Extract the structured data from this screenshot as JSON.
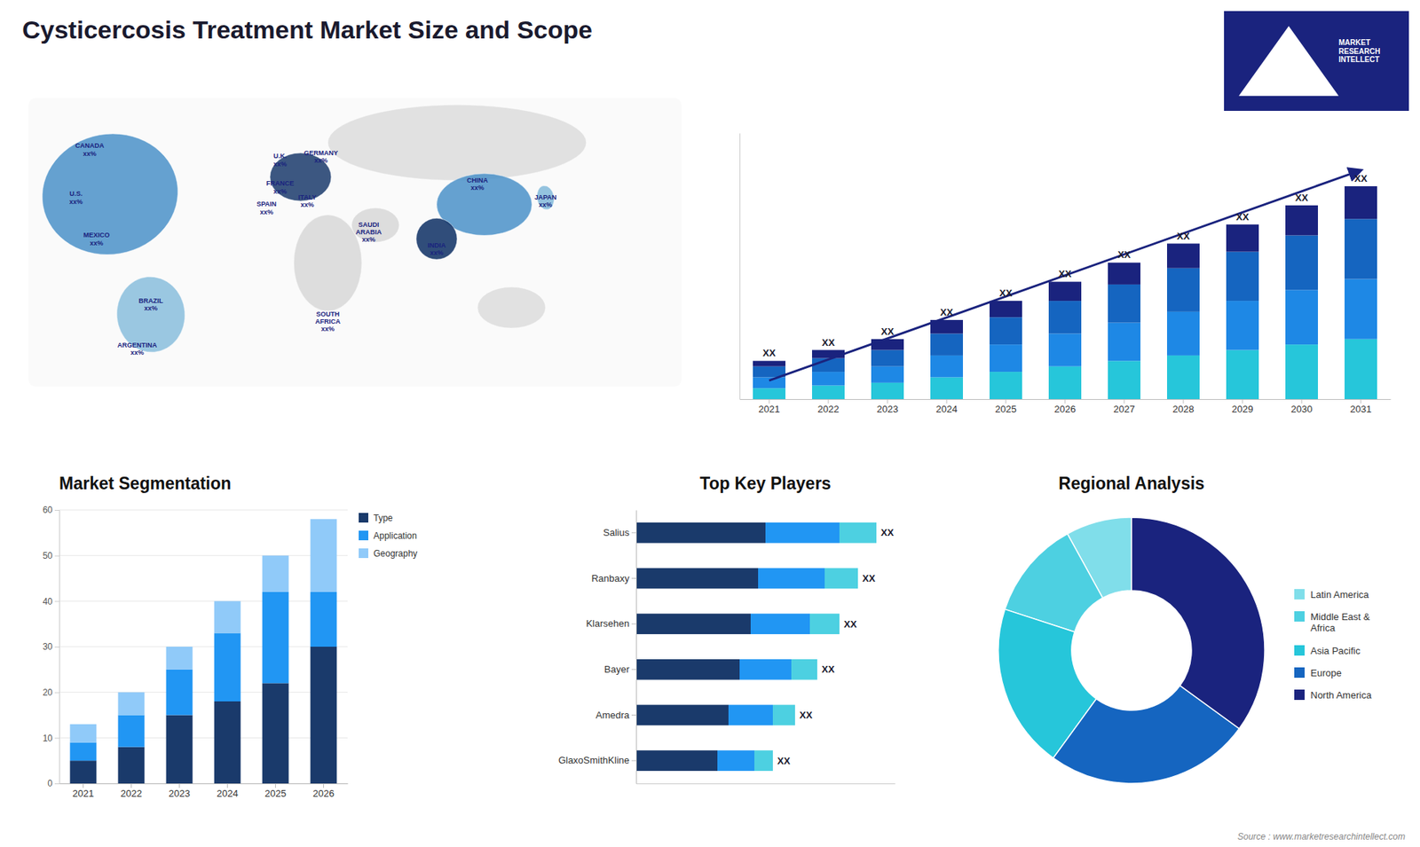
{
  "chart_data": [
    {
      "type": "map",
      "title": "Cysticercosis Treatment Market Size and Scope",
      "annotations": [
        "CANADA\nxx%",
        "U.S.\nxx%",
        "MEXICO\nxx%",
        "BRAZIL\nxx%",
        "ARGENTINA\nxx%",
        "U.K.\nxx%",
        "FRANCE\nxx%",
        "SPAIN\nxx%",
        "GERMANY\nxx%",
        "ITALY\nxx%",
        "SAUDI\nARABIA\nxx%",
        "SOUTH\nAFRICA\nxx%",
        "CHINA\nxx%",
        "INDIA\nxx%",
        "JAPAN\nxx%",
        "MARKET\nRESEARCH\nINTELLECT",
        "Source : www.marketresearchintellect.com"
      ]
    },
    {
      "type": "bar",
      "stacked": true,
      "categories": [
        "2021",
        "2022",
        "2023",
        "2024",
        "2025",
        "2026",
        "2027",
        "2028",
        "2029",
        "2030",
        "2031"
      ],
      "series": [
        {
          "color": "#26c6da",
          "values": [
            2,
            2.5,
            3,
            4,
            5,
            6,
            7,
            8,
            9,
            10,
            11
          ]
        },
        {
          "color": "#1e88e5",
          "values": [
            2,
            2.5,
            3,
            4,
            5,
            6,
            7,
            8,
            9,
            10,
            11
          ]
        },
        {
          "color": "#1565c0",
          "values": [
            2,
            2.5,
            3,
            4,
            5,
            6,
            7,
            8,
            9,
            10,
            11
          ]
        },
        {
          "color": "#1a237e",
          "values": [
            1,
            1.5,
            2,
            2.5,
            3,
            3.5,
            4,
            4.5,
            5,
            5.5,
            6
          ]
        }
      ],
      "ylim": [
        0,
        48.75
      ],
      "tick_labels": "x",
      "annotations": [
        "XX",
        "XX",
        "XX",
        "XX",
        "XX",
        "XX",
        "XX",
        "XX",
        "XX",
        "XX",
        "XX"
      ]
    },
    {
      "type": "bar",
      "stacked": true,
      "title": "Market Segmentation",
      "categories": [
        "2021",
        "2022",
        "2023",
        "2024",
        "2025",
        "2026"
      ],
      "series": [
        {
          "name": "Type",
          "color": "#1a3a6b",
          "values": [
            5,
            8,
            15,
            18,
            22,
            30
          ]
        },
        {
          "name": "Application",
          "color": "#2196f3",
          "values": [
            4,
            7,
            10,
            15,
            20,
            12
          ]
        },
        {
          "name": "Geography",
          "color": "#90caf9",
          "values": [
            4,
            5,
            5,
            7,
            8,
            16
          ]
        }
      ],
      "ylim": [
        0,
        60
      ],
      "yticks": [
        0,
        10,
        20,
        30,
        40,
        50,
        60
      ],
      "grid": true,
      "legend": "right"
    },
    {
      "type": "bar",
      "stacked": true,
      "orientation": "horizontal",
      "title": "Top Key Players",
      "categories": [
        "Salius",
        "Ranbaxy",
        "Klarsehen",
        "Bayer",
        "Amedra",
        "GlaxoSmithKline"
      ],
      "series": [
        {
          "color": "#1a3a6b",
          "values": [
            35,
            33,
            31,
            28,
            25,
            22
          ]
        },
        {
          "color": "#2196f3",
          "values": [
            20,
            18,
            16,
            14,
            12,
            10
          ]
        },
        {
          "color": "#4dd0e1",
          "values": [
            10,
            9,
            8,
            7,
            6,
            5
          ]
        }
      ],
      "xlim": [
        0,
        70
      ],
      "tick_labels": "y",
      "annotations": [
        "XX",
        "XX",
        "XX",
        "XX",
        "XX",
        "XX"
      ]
    },
    {
      "type": "pie",
      "title": "Regional Analysis",
      "categories": [
        "Latin America",
        "Middle East &\nAfrica",
        "Asia Pacific",
        "Europe",
        "North America"
      ],
      "values": [
        8,
        12,
        20,
        25,
        35
      ],
      "colors": [
        "#80deea",
        "#4dd0e1",
        "#26c6da",
        "#1565c0",
        "#1a237e"
      ],
      "legend": "right"
    }
  ]
}
